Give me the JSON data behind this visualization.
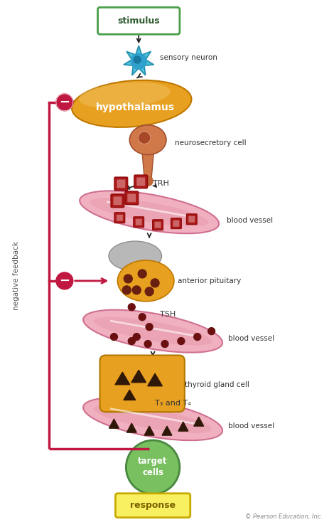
{
  "bg_color": "#ffffff",
  "fig_width": 4.63,
  "fig_height": 7.41,
  "copyright": "© Pearson Education, Inc.",
  "labels": {
    "stimulus": "stimulus",
    "sensory_neuron": "sensory neuron",
    "hypothalamus": "hypothalamus",
    "neurosecretory": "neurosecretory cell",
    "TRH": "TRH",
    "blood_vessel1": "blood vessel",
    "anterior_pituitary": "anterior pituitary",
    "TSH": "TSH",
    "blood_vessel2": "blood vessel",
    "thyroid": "thyroid gland cell",
    "T3T4": "T₃ and T₄",
    "blood_vessel3": "blood vessel",
    "target": "target\ncells",
    "response": "response",
    "negative_feedback": "negative feedback"
  },
  "colors": {
    "stimulus_box_edge": "#4a9e4a",
    "stimulus_text": "#2d5a2d",
    "hypothalamus_fill": "#e8a020",
    "hypothalamus_edge": "#c07800",
    "neurosecretory_fill": "#d07848",
    "neurosecretory_edge": "#a05030",
    "blood_vessel_fill": "#f0b0c0",
    "blood_vessel_edge": "#d07090",
    "blood_vessel_inner": "#e89aaa",
    "pit_gray": "#b0b0b0",
    "pit_gray_edge": "#888888",
    "pit_gold": "#d4960a",
    "pit_dot": "#6a2010",
    "thyroid_fill": "#e8a020",
    "thyroid_edge": "#b07800",
    "target_fill": "#78c060",
    "target_edge": "#4a8840",
    "response_fill": "#f8f060",
    "response_edge": "#c8aa00",
    "TRH_sq": "#aa1818",
    "TRH_sq_inner": "#cc6666",
    "TSH_dot": "#6a1010",
    "tri_color": "#301808",
    "feedback_line": "#c01840",
    "arrow_dark": "#222222",
    "label_color": "#333333",
    "copyright_color": "#888888"
  }
}
